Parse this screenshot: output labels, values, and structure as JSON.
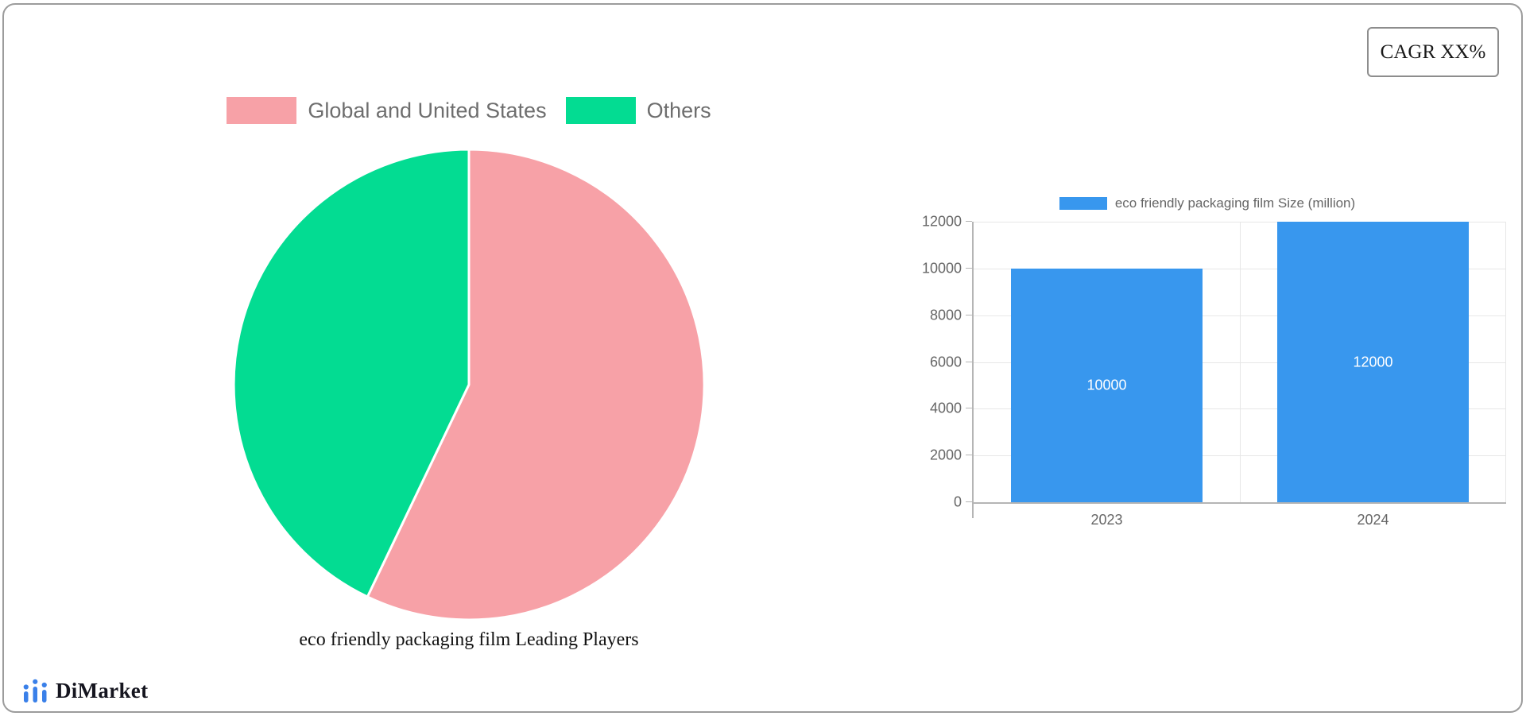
{
  "cagr": {
    "label": "CAGR XX%"
  },
  "logo": {
    "text": "DiMarket",
    "icon": "bar-chart-icon",
    "icon_color": "#3A80E9"
  },
  "colors": {
    "pink": "#F7A1A7",
    "green": "#03DC92",
    "blue": "#3897EE",
    "axis_text": "#666666",
    "pie_legend_text": "#6e6e6e",
    "gridline": "#e7e7e7",
    "axis_line": "#b5b5b5",
    "card_border": "#9c9c9c"
  },
  "chart_data": [
    {
      "type": "pie",
      "title": "eco friendly packaging film Leading Players",
      "legend_position": "top",
      "slices": [
        {
          "label": "Global and United States",
          "value": 57.1,
          "color": "#F7A1A7"
        },
        {
          "label": "Others",
          "value": 42.9,
          "color": "#03DC92"
        }
      ]
    },
    {
      "type": "bar",
      "categories": [
        "2023",
        "2024"
      ],
      "series": [
        {
          "name": "eco friendly packaging film Size (million)",
          "values": [
            10000,
            12000
          ],
          "color": "#3897EE"
        }
      ],
      "bar_labels": [
        "10000",
        "12000"
      ],
      "xlabel": "",
      "ylabel": "",
      "ylim": [
        0,
        12000
      ],
      "ytick_step": 2000,
      "grid": true,
      "legend_position": "top"
    }
  ]
}
